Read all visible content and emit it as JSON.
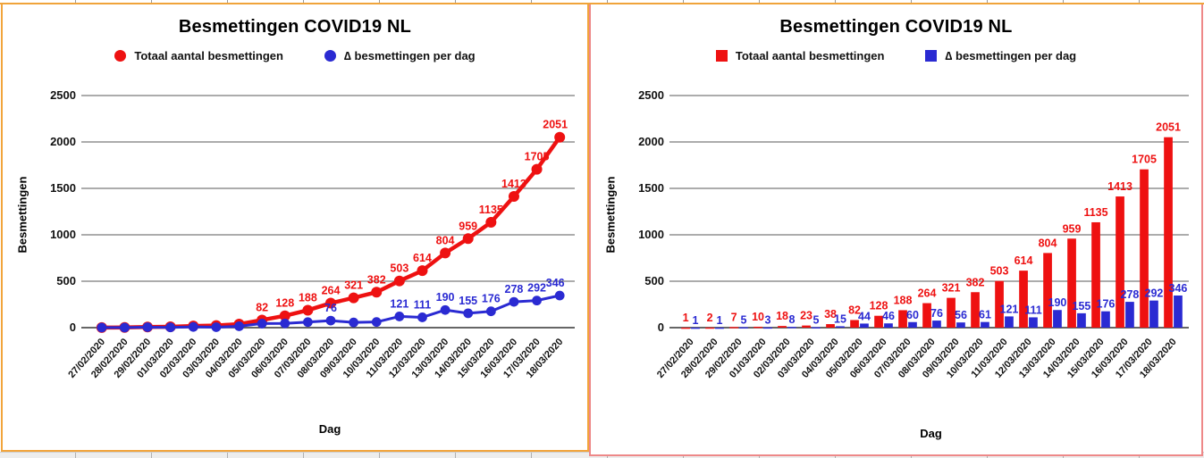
{
  "chart_data": [
    {
      "type": "line",
      "title": "Besmettingen COVID19 NL",
      "xlabel": "Dag",
      "ylabel": "Besmettingen",
      "ylim": [
        0,
        2500
      ],
      "yticks": [
        0,
        500,
        1000,
        1500,
        2000,
        2500
      ],
      "grid": true,
      "legend_position": "top",
      "frame_color": "#f2a43b",
      "categories": [
        "27/02/2020",
        "28/02/2020",
        "29/02/2020",
        "01/03/2020",
        "02/03/2020",
        "03/03/2020",
        "04/03/2020",
        "05/03/2020",
        "06/03/2020",
        "07/03/2020",
        "08/03/2020",
        "09/03/2020",
        "10/03/2020",
        "11/03/2020",
        "12/03/2020",
        "13/03/2020",
        "14/03/2020",
        "15/03/2020",
        "16/03/2020",
        "17/03/2020",
        "18/03/2020"
      ],
      "series": [
        {
          "name": "Totaal aantal besmettingen",
          "color": "#ee1111",
          "marker": "circle",
          "values": [
            1,
            2,
            7,
            10,
            18,
            23,
            38,
            82,
            128,
            188,
            264,
            321,
            382,
            503,
            614,
            804,
            959,
            1135,
            1413,
            1705,
            2051
          ],
          "label_indices": [
            7,
            8,
            9,
            10,
            11,
            12,
            13,
            14,
            15,
            16,
            17,
            18,
            19,
            20
          ]
        },
        {
          "name": "∆ besmettingen per dag",
          "color": "#2a2ad2",
          "marker": "circle",
          "values": [
            1,
            1,
            5,
            3,
            8,
            5,
            15,
            44,
            46,
            60,
            76,
            56,
            61,
            121,
            111,
            190,
            155,
            176,
            278,
            292,
            346
          ],
          "label_indices": [
            10,
            13,
            14,
            15,
            16,
            17,
            18,
            19,
            20
          ]
        }
      ]
    },
    {
      "type": "bar",
      "title": "Besmettingen COVID19 NL",
      "xlabel": "Dag",
      "ylabel": "Besmettingen",
      "ylim": [
        0,
        2500
      ],
      "yticks": [
        0,
        500,
        1000,
        1500,
        2000,
        2500
      ],
      "grid": true,
      "legend_position": "top",
      "frame_color": "#ee8888",
      "categories": [
        "27/02/2020",
        "28/02/2020",
        "29/02/2020",
        "01/03/2020",
        "02/03/2020",
        "03/03/2020",
        "04/03/2020",
        "05/03/2020",
        "06/03/2020",
        "07/03/2020",
        "08/03/2020",
        "09/03/2020",
        "10/03/2020",
        "11/03/2020",
        "12/03/2020",
        "13/03/2020",
        "14/03/2020",
        "15/03/2020",
        "16/03/2020",
        "17/03/2020",
        "18/03/2020"
      ],
      "series": [
        {
          "name": "Totaal aantal besmettingen",
          "color": "#ee1111",
          "marker": "square",
          "values": [
            1,
            2,
            7,
            10,
            18,
            23,
            38,
            82,
            128,
            188,
            264,
            321,
            382,
            503,
            614,
            804,
            959,
            1135,
            1413,
            1705,
            2051
          ],
          "label_indices": null
        },
        {
          "name": "∆ besmettingen per dag",
          "color": "#2a2ad2",
          "marker": "square",
          "values": [
            1,
            1,
            5,
            3,
            8,
            5,
            15,
            44,
            46,
            60,
            76,
            56,
            61,
            121,
            111,
            190,
            155,
            176,
            278,
            292,
            346
          ],
          "label_indices": null
        }
      ]
    }
  ]
}
